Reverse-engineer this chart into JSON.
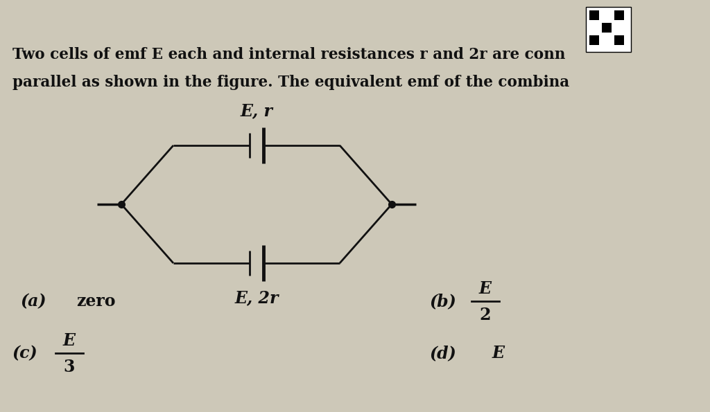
{
  "bg_color": "#cdc8b8",
  "text_color": "#111111",
  "title_line1": "Two cells of emf E each and internal resistances r and 2r are conn",
  "title_line2": "parallel as shown in the figure. The equivalent emf of the combina",
  "label_top": "E, r",
  "label_bottom": "E, 2r",
  "option_a_label": "(a)",
  "option_a_val": "zero",
  "option_b_label": "(b)",
  "option_b_num": "E",
  "option_b_den": "2",
  "option_c_label": "(c)",
  "option_c_num": "E",
  "option_c_den": "3",
  "option_d_label": "(d)",
  "option_d_val": "E",
  "line_color": "#111111",
  "line_width": 2.0
}
